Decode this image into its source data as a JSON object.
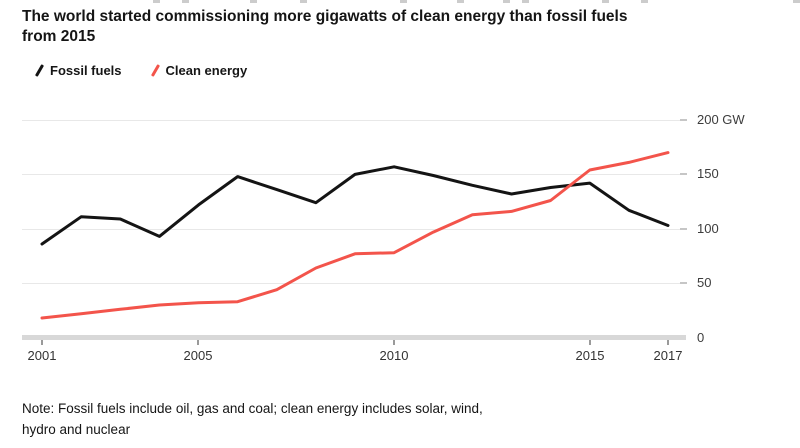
{
  "title_lines": [
    "The world started commissioning more gigawatts of clean energy than fossil fuels",
    "from 2015"
  ],
  "legend": {
    "items": [
      {
        "label": "Fossil fuels",
        "color": "#141414"
      },
      {
        "label": "Clean energy",
        "color": "#f3544b"
      }
    ]
  },
  "note": {
    "line1": "Note: Fossil fuels include oil, gas and coal; clean energy includes solar, wind,",
    "line2": "hydro and nuclear"
  },
  "chart_data": {
    "type": "line",
    "title": "The world started commissioning more gigawatts of clean energy than fossil fuels from 2015",
    "x": [
      2001,
      2002,
      2003,
      2004,
      2005,
      2006,
      2007,
      2008,
      2009,
      2010,
      2011,
      2012,
      2013,
      2014,
      2015,
      2016,
      2017
    ],
    "series": [
      {
        "name": "Fossil fuels",
        "color": "#141414",
        "values": [
          86,
          111,
          109,
          93,
          122,
          148,
          136,
          124,
          150,
          157,
          149,
          140,
          132,
          138,
          142,
          117,
          103
        ]
      },
      {
        "name": "Clean energy",
        "color": "#f3544b",
        "values": [
          18,
          22,
          26,
          30,
          32,
          33,
          44,
          64,
          77,
          78,
          97,
          113,
          116,
          126,
          154,
          161,
          170
        ]
      }
    ],
    "unit": "GW",
    "ylim": [
      0,
      200
    ],
    "y_ticks": [
      0,
      50,
      100,
      150,
      200
    ],
    "y_tick_labels": [
      "0",
      "50",
      "100",
      "150",
      "200 GW"
    ],
    "x_ticks": [
      2001,
      2005,
      2010,
      2015,
      2017
    ],
    "x_tick_labels": [
      "2001",
      "2005",
      "2010",
      "2015",
      "2017"
    ],
    "grid": true,
    "legend_position": "top-left"
  },
  "colors": {
    "fossil_line": "#141414",
    "clean_line": "#f3544b",
    "gridline": "#e8e8e8",
    "axis_band": "#d8d8d8",
    "axis_text": "#3d3d3d"
  }
}
